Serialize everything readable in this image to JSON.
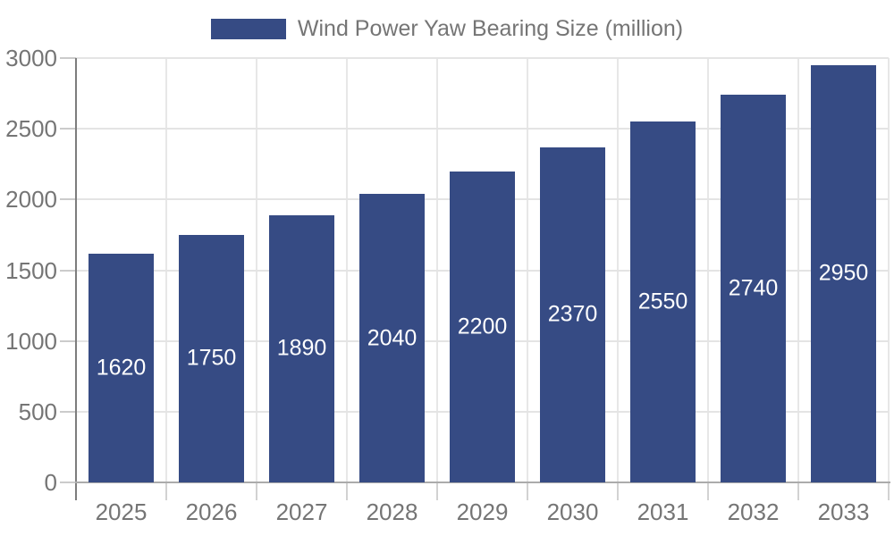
{
  "page": {
    "background_color": "#ffffff",
    "text_color": "#757575"
  },
  "legend": {
    "label": "Wind Power Yaw Bearing Size (million)",
    "swatch_color": "#364b84"
  },
  "chart_data": {
    "type": "bar",
    "title": "",
    "series_name": "Wind Power Yaw Bearing Size (million)",
    "categories": [
      "2025",
      "2026",
      "2027",
      "2028",
      "2029",
      "2030",
      "2031",
      "2032",
      "2033"
    ],
    "values": [
      1620,
      1750,
      1890,
      2040,
      2200,
      2370,
      2550,
      2740,
      2950
    ],
    "value_labels": [
      "1620",
      "1750",
      "1890",
      "2040",
      "2200",
      "2370",
      "2550",
      "2740",
      "2950"
    ],
    "xlabel": "",
    "ylabel": "",
    "ylim": [
      0,
      3000
    ],
    "yticks": [
      0,
      500,
      1000,
      1500,
      2000,
      2500,
      3000
    ],
    "ytick_labels": [
      "0",
      "500",
      "1000",
      "1500",
      "2000",
      "2500",
      "3000"
    ],
    "grid": true,
    "legend_position": "top-center",
    "bar_color": "#364b84",
    "value_label_color": "#ffffff",
    "axis_text_color": "#757575"
  }
}
